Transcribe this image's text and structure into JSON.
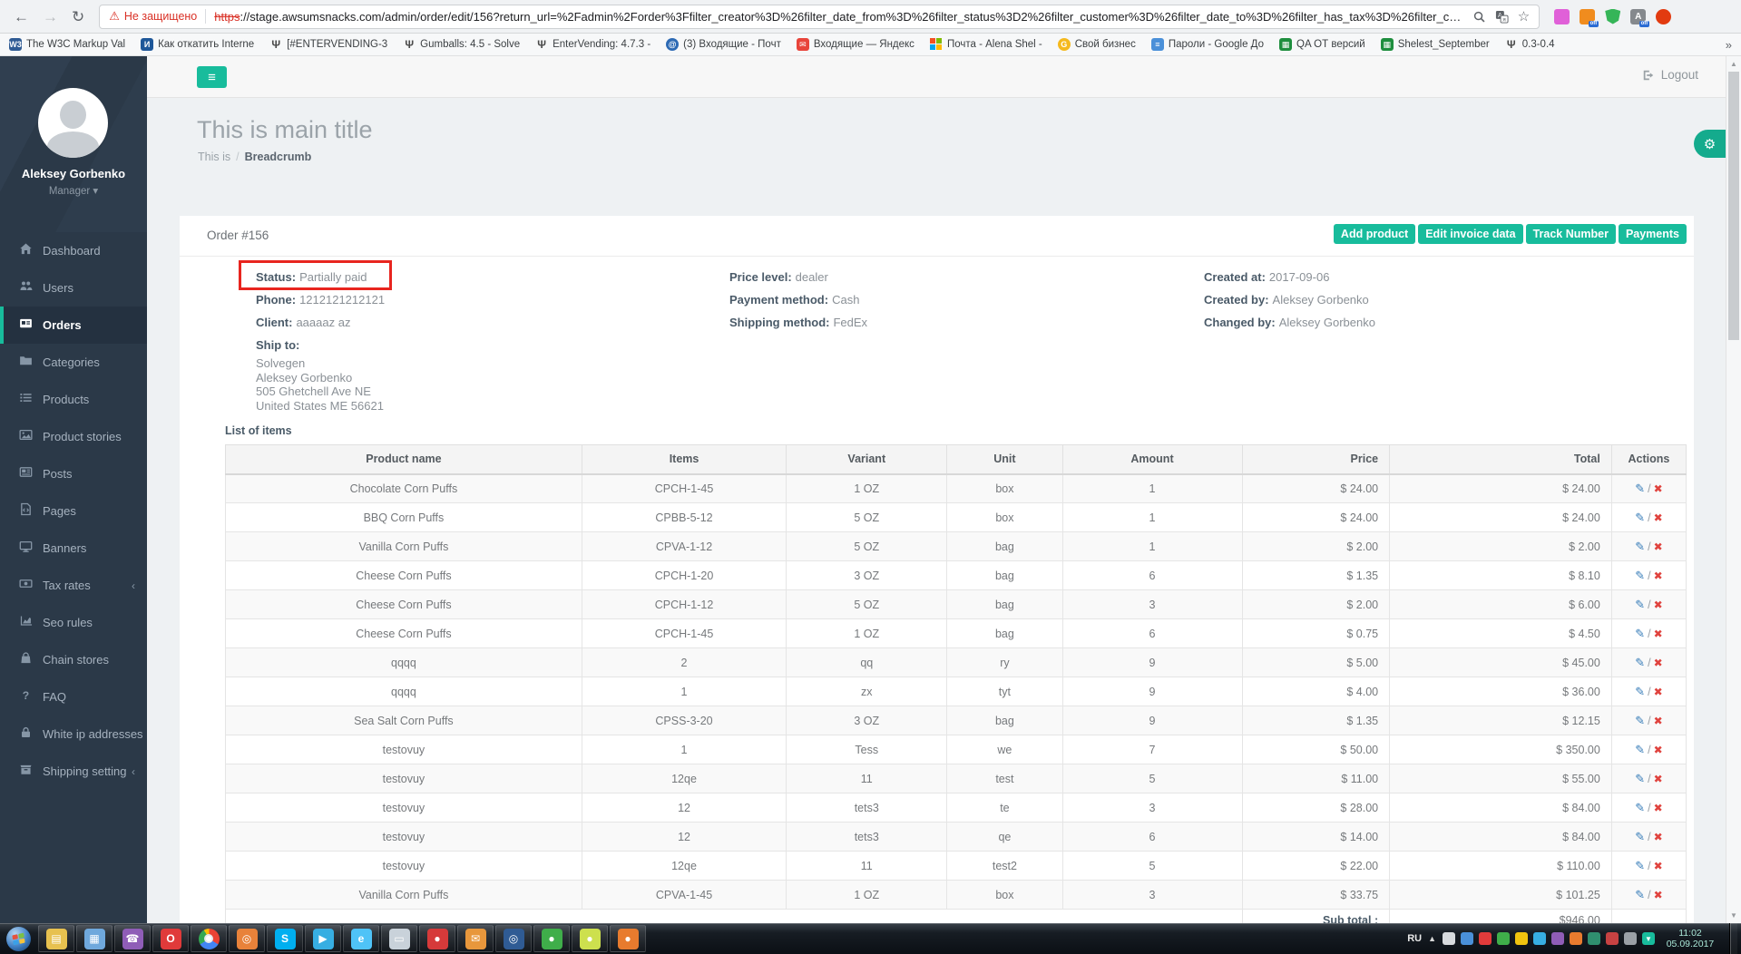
{
  "colors": {
    "accent": "#18bc9c",
    "annotation": "#e8251f",
    "sidebar_bg": "#2b3948",
    "danger": "#e0433e",
    "link_blue": "#337ab7"
  },
  "browser": {
    "security_warning": "Не защищено",
    "url_protocol": "https",
    "url_rest": "://stage.awsumsnacks.com/admin/order/edit/156?return_url=%2Fadmin%2Forder%3Ffilter_creator%3D%26filter_date_from%3D%26filter_status%3D2%26filter_customer%3D%26filter_date_to%3D%26filter_has_tax%3D%26filter_c…",
    "bookmarks_overflow": "»",
    "bookmarks": [
      {
        "label": "The W3C Markup Val",
        "icon": "w3c-icon",
        "glyph": "W3",
        "bg": "#2f5b94"
      },
      {
        "label": "Как откатить Interne",
        "icon": "site-icon",
        "glyph": "И",
        "bg": "#1e5799"
      },
      {
        "label": "[#ENTERVENDING-3",
        "icon": "tracker-icon",
        "glyph": "Ψ",
        "bg": "",
        "fg": "#4a4a4a"
      },
      {
        "label": "Gumballs: 4.5 - Solve",
        "icon": "tracker-icon",
        "glyph": "Ψ",
        "bg": "",
        "fg": "#4a4a4a"
      },
      {
        "label": "EnterVending: 4.7.3 -",
        "icon": "tracker-icon",
        "glyph": "Ψ",
        "bg": "",
        "fg": "#4a4a4a"
      },
      {
        "label": "(3) Входящие - Почт",
        "icon": "mail-icon",
        "glyph": "@",
        "bg": "#2d6ab4",
        "shape": "circle"
      },
      {
        "label": "Входящие — Яндекс",
        "icon": "yandex-mail-icon",
        "glyph": "✉",
        "bg": "#e8443a"
      },
      {
        "label": "Почта - Alena Shel -",
        "icon": "ms-mail-icon",
        "glyph": "",
        "bg": "msgrid"
      },
      {
        "label": "Свой бизнес",
        "icon": "g-icon",
        "glyph": "G",
        "bg": "#f5b91e",
        "shape": "circle"
      },
      {
        "label": "Пароли - Google До",
        "icon": "doc-icon",
        "glyph": "≡",
        "bg": "#4a90d9"
      },
      {
        "label": "QA ОТ версий",
        "icon": "sheet-icon",
        "glyph": "▦",
        "bg": "#1e8e3e"
      },
      {
        "label": "Shelest_September",
        "icon": "sheet-icon",
        "glyph": "▦",
        "bg": "#1e8e3e"
      },
      {
        "label": "0.3-0.4",
        "icon": "tracker-icon",
        "glyph": "Ψ",
        "bg": "",
        "fg": "#4a4a4a"
      }
    ],
    "extensions": [
      {
        "name": "pink-extension-icon",
        "color": "#e060d8",
        "glyph": "",
        "badge": ""
      },
      {
        "name": "orange-extension-icon",
        "color": "#f08c1e",
        "glyph": "",
        "badge": "off"
      },
      {
        "name": "adblock-shield-icon",
        "color": "#35b558",
        "glyph": "",
        "badge": ""
      },
      {
        "name": "a-extension-icon",
        "color": "#85898d",
        "glyph": "A",
        "badge": "off"
      },
      {
        "name": "red-extension-icon",
        "color": "#e23b10",
        "glyph": "",
        "badge": "",
        "shape": "circle"
      }
    ]
  },
  "sidebar": {
    "user_name": "Aleksey Gorbenko",
    "user_role": "Manager ▾",
    "items": [
      {
        "label": "Dashboard",
        "icon": "home-icon",
        "active": false,
        "chevron": false
      },
      {
        "label": "Users",
        "icon": "users-icon",
        "active": false,
        "chevron": false
      },
      {
        "label": "Orders",
        "icon": "orders-icon",
        "active": true,
        "chevron": false
      },
      {
        "label": "Categories",
        "icon": "folder-icon",
        "active": false,
        "chevron": false
      },
      {
        "label": "Products",
        "icon": "list-icon",
        "active": false,
        "chevron": false
      },
      {
        "label": "Product stories",
        "icon": "image-icon",
        "active": false,
        "chevron": false
      },
      {
        "label": "Posts",
        "icon": "newspaper-icon",
        "active": false,
        "chevron": false
      },
      {
        "label": "Pages",
        "icon": "page-icon",
        "active": false,
        "chevron": false
      },
      {
        "label": "Banners",
        "icon": "monitor-icon",
        "active": false,
        "chevron": false
      },
      {
        "label": "Tax rates",
        "icon": "money-icon",
        "active": false,
        "chevron": true
      },
      {
        "label": "Seo rules",
        "icon": "chart-icon",
        "active": false,
        "chevron": false
      },
      {
        "label": "Chain stores",
        "icon": "bag-icon",
        "active": false,
        "chevron": false
      },
      {
        "label": "FAQ",
        "icon": "question-icon",
        "active": false,
        "chevron": false
      },
      {
        "label": "White ip addresses",
        "icon": "lock-icon",
        "active": false,
        "chevron": false
      },
      {
        "label": "Shipping setting",
        "icon": "box-icon",
        "active": false,
        "chevron": true
      }
    ]
  },
  "header": {
    "logout_label": "Logout",
    "page_title": "This is main title",
    "breadcrumb": [
      "This is",
      "Breadcrumb"
    ]
  },
  "order": {
    "panel_title": "Order #156",
    "action_buttons": [
      "Add product",
      "Edit invoice data",
      "Track Number",
      "Payments"
    ],
    "info_left": [
      {
        "label": "Status:",
        "value": "Partially paid"
      },
      {
        "label": "Phone:",
        "value": "1212121212121"
      },
      {
        "label": "Client:",
        "value": "aaaaaz az"
      }
    ],
    "ship_to_label": "Ship to:",
    "ship_to_lines": [
      "Solvegen",
      "Aleksey Gorbenko",
      "505 Ghetchell Ave NE",
      "United States ME 56621"
    ],
    "info_middle": [
      {
        "label": "Price level:",
        "value": "dealer"
      },
      {
        "label": "Payment method:",
        "value": "Cash"
      },
      {
        "label": "Shipping method:",
        "value": "FedEx"
      }
    ],
    "info_right": [
      {
        "label": "Created at:",
        "value": "2017-09-06"
      },
      {
        "label": "Created by:",
        "value": "Aleksey Gorbenko"
      },
      {
        "label": "Changed by:",
        "value": "Aleksey Gorbenko"
      }
    ],
    "list_title": "List of items"
  },
  "items_table": {
    "columns": [
      "Product name",
      "Items",
      "Variant",
      "Unit",
      "Amount",
      "Price",
      "Total",
      "Actions"
    ],
    "rows": [
      [
        "Chocolate Corn Puffs",
        "CPCH-1-45",
        "1 OZ",
        "box",
        "1",
        "$ 24.00",
        "$ 24.00"
      ],
      [
        "BBQ Corn Puffs",
        "CPBB-5-12",
        "5 OZ",
        "box",
        "1",
        "$ 24.00",
        "$ 24.00"
      ],
      [
        "Vanilla Corn Puffs",
        "CPVA-1-12",
        "5 OZ",
        "bag",
        "1",
        "$ 2.00",
        "$ 2.00"
      ],
      [
        "Cheese Corn Puffs",
        "CPCH-1-20",
        "3 OZ",
        "bag",
        "6",
        "$ 1.35",
        "$ 8.10"
      ],
      [
        "Cheese Corn Puffs",
        "CPCH-1-12",
        "5 OZ",
        "bag",
        "3",
        "$ 2.00",
        "$ 6.00"
      ],
      [
        "Cheese Corn Puffs",
        "CPCH-1-45",
        "1 OZ",
        "bag",
        "6",
        "$ 0.75",
        "$ 4.50"
      ],
      [
        "qqqq",
        "2",
        "qq",
        "ry",
        "9",
        "$ 5.00",
        "$ 45.00"
      ],
      [
        "qqqq",
        "1",
        "zx",
        "tyt",
        "9",
        "$ 4.00",
        "$ 36.00"
      ],
      [
        "Sea Salt Corn Puffs",
        "CPSS-3-20",
        "3 OZ",
        "bag",
        "9",
        "$ 1.35",
        "$ 12.15"
      ],
      [
        "testovuy",
        "1",
        "Tess",
        "we",
        "7",
        "$ 50.00",
        "$ 350.00"
      ],
      [
        "testovuy",
        "12qe",
        "11",
        "test",
        "5",
        "$ 11.00",
        "$ 55.00"
      ],
      [
        "testovuy",
        "12",
        "tets3",
        "te",
        "3",
        "$ 28.00",
        "$ 84.00"
      ],
      [
        "testovuy",
        "12",
        "tets3",
        "qe",
        "6",
        "$ 14.00",
        "$ 84.00"
      ],
      [
        "testovuy",
        "12qe",
        "11",
        "test2",
        "5",
        "$ 22.00",
        "$ 110.00"
      ],
      [
        "Vanilla Corn Puffs",
        "CPVA-1-45",
        "1 OZ",
        "box",
        "3",
        "$ 33.75",
        "$ 101.25"
      ]
    ],
    "subtotal_label": "Sub total :",
    "subtotal_value": "$946.00"
  },
  "taskbar": {
    "icons": [
      {
        "name": "explorer-icon",
        "color": "#e7c14f",
        "glyph": "▤"
      },
      {
        "name": "media-app-icon",
        "color": "#6fa8dc",
        "glyph": "▦"
      },
      {
        "name": "viber-icon",
        "color": "#8f5db7",
        "glyph": "☎"
      },
      {
        "name": "opera-icon",
        "color": "#e03a3a",
        "glyph": "O"
      },
      {
        "name": "chrome-icon",
        "color": "#4a90d9",
        "glyph": ""
      },
      {
        "name": "firefox-icon",
        "color": "#e8823a",
        "glyph": "◎"
      },
      {
        "name": "skype-icon",
        "color": "#00aff0",
        "glyph": "S"
      },
      {
        "name": "telegram-icon",
        "color": "#37aee2",
        "glyph": "▶"
      },
      {
        "name": "ie-icon",
        "color": "#4fc3f7",
        "glyph": "e"
      },
      {
        "name": "vm-window-icon",
        "color": "#c9d2da",
        "glyph": "▭"
      },
      {
        "name": "screen-recorder-icon",
        "color": "#d63a3a",
        "glyph": "●"
      },
      {
        "name": "outlook-icon",
        "color": "#e8973c",
        "glyph": "✉"
      },
      {
        "name": "globe-app-icon",
        "color": "#2f5b94",
        "glyph": "◎"
      },
      {
        "name": "green-app-icon",
        "color": "#3fae4a",
        "glyph": "●"
      },
      {
        "name": "ball-app-icon",
        "color": "#cde04e",
        "glyph": "●"
      },
      {
        "name": "orange-app-icon",
        "color": "#e87b2e",
        "glyph": "●"
      }
    ],
    "tray_lang": "RU",
    "tray_caret": "▲",
    "tray_icons": [
      {
        "name": "tray-icon",
        "color": "#d7dadd",
        "glyph": ""
      },
      {
        "name": "tray-icon",
        "color": "#4a90d9",
        "glyph": ""
      },
      {
        "name": "tray-icon",
        "color": "#e23b3b",
        "glyph": ""
      },
      {
        "name": "tray-icon",
        "color": "#3fae4a",
        "glyph": ""
      },
      {
        "name": "tray-icon",
        "color": "#f1c40f",
        "glyph": ""
      },
      {
        "name": "tray-icon",
        "color": "#37aee2",
        "glyph": ""
      },
      {
        "name": "tray-icon",
        "color": "#8f5db7",
        "glyph": ""
      },
      {
        "name": "tray-icon",
        "color": "#e87b2e",
        "glyph": ""
      },
      {
        "name": "tray-icon",
        "color": "#2f8f6f",
        "glyph": ""
      },
      {
        "name": "tray-icon",
        "color": "#c74242",
        "glyph": ""
      },
      {
        "name": "tray-icon",
        "color": "#9aa0a6",
        "glyph": ""
      },
      {
        "name": "download-arrow-icon",
        "color": "#18bc9c",
        "glyph": "▼"
      }
    ],
    "clock_time": "11:02",
    "clock_date": "05.09.2017"
  }
}
